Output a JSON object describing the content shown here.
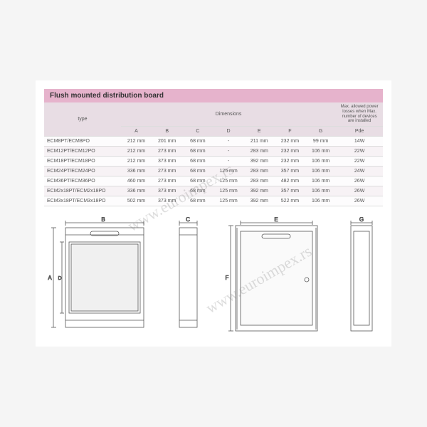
{
  "title": "Flush mounted distribution board",
  "header_type": "type",
  "header_dimensions": "Dimensions",
  "header_pde_note": "Max. allowed power losses when Max. number of devices are installed",
  "columns": [
    "A",
    "B",
    "C",
    "D",
    "E",
    "F",
    "G",
    "Pde"
  ],
  "rows": [
    {
      "type": "ECM8PT/ECM8PO",
      "A": "212 mm",
      "B": "201 mm",
      "C": "68 mm",
      "D": "-",
      "E": "211 mm",
      "F": "232 mm",
      "G": "99 mm",
      "Pde": "14W"
    },
    {
      "type": "ECM12PT/ECM12PO",
      "A": "212 mm",
      "B": "273 mm",
      "C": "68 mm",
      "D": "-",
      "E": "283 mm",
      "F": "232 mm",
      "G": "106 mm",
      "Pde": "22W"
    },
    {
      "type": "ECM18PT/ECM18PO",
      "A": "212 mm",
      "B": "373 mm",
      "C": "68 mm",
      "D": "-",
      "E": "392 mm",
      "F": "232 mm",
      "G": "106 mm",
      "Pde": "22W"
    },
    {
      "type": "ECM24PT/ECM24PO",
      "A": "336 mm",
      "B": "273 mm",
      "C": "68 mm",
      "D": "125 mm",
      "E": "283 mm",
      "F": "357 mm",
      "G": "106 mm",
      "Pde": "24W"
    },
    {
      "type": "ECM36PT/ECM36PO",
      "A": "460 mm",
      "B": "273 mm",
      "C": "68 mm",
      "D": "125 mm",
      "E": "283 mm",
      "F": "482 mm",
      "G": "106 mm",
      "Pde": "26W"
    },
    {
      "type": "ECM2x18PT/ECM2x18PO",
      "A": "336 mm",
      "B": "373 mm",
      "C": "68 mm",
      "D": "125 mm",
      "E": "392 mm",
      "F": "357 mm",
      "G": "106 mm",
      "Pde": "26W"
    },
    {
      "type": "ECM3x18PT/ECM3x18PO",
      "A": "502 mm",
      "B": "373 mm",
      "C": "68 mm",
      "D": "125 mm",
      "E": "392 mm",
      "F": "522 mm",
      "G": "106 mm",
      "Pde": "26W"
    }
  ],
  "watermark_text": "www.euroimpex.rs",
  "dim_labels": {
    "A": "A",
    "B": "B",
    "C": "C",
    "D": "D",
    "E": "E",
    "F": "F",
    "G": "G"
  },
  "colors": {
    "title_bg": "#e6b3cc",
    "header_bg": "#e8dde4",
    "stroke": "#555555",
    "text": "#555555"
  }
}
